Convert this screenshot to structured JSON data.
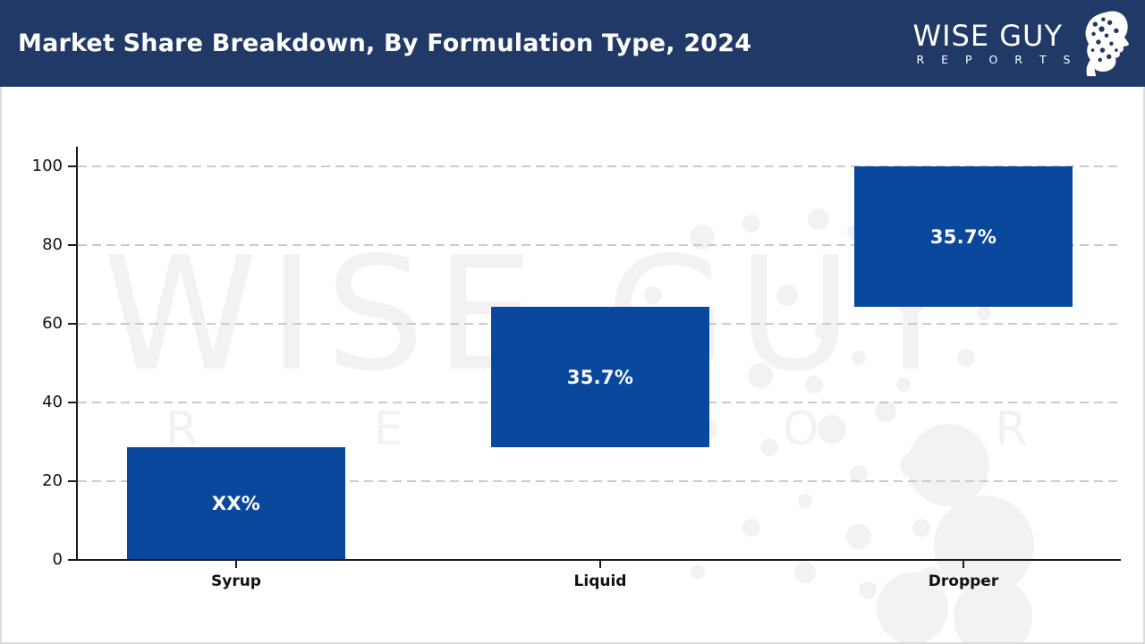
{
  "header": {
    "title": "Market Share Breakdown, By Formulation Type, 2024"
  },
  "brand": {
    "name": "WISE GUY",
    "reports": "R E P O R T S"
  },
  "watermark": {
    "name": "WISE GUY",
    "reports": "R E P O R T S"
  },
  "chart_data": {
    "type": "bar",
    "subtype": "waterfall",
    "title": "Market Share Breakdown, By Formulation Type, 2024",
    "categories": [
      "Syrup",
      "Liquid",
      "Dropper"
    ],
    "segments": [
      {
        "category": "Syrup",
        "start": 0,
        "end": 28.6,
        "label": "XX%"
      },
      {
        "category": "Liquid",
        "start": 28.6,
        "end": 64.3,
        "label": "35.7%"
      },
      {
        "category": "Dropper",
        "start": 64.3,
        "end": 100,
        "label": "35.7%"
      }
    ],
    "values_pct": [
      28.6,
      35.7,
      35.7
    ],
    "xlabel": "",
    "ylabel": "",
    "ylim": [
      0,
      105
    ],
    "yticks": [
      0,
      20,
      40,
      60,
      80,
      100
    ],
    "grid": "horizontal-dashed",
    "legend": "none"
  },
  "colors": {
    "header_bg": "#213966",
    "bar": "#0a489e",
    "grid": "#cbcbcb",
    "watermark": "#f2f2f2",
    "axis": "#1a1a1a",
    "frame_border": "#dcdcdc",
    "title_text": "#ffffff",
    "bar_label": "#ffffff",
    "tick_text": "#111111"
  }
}
